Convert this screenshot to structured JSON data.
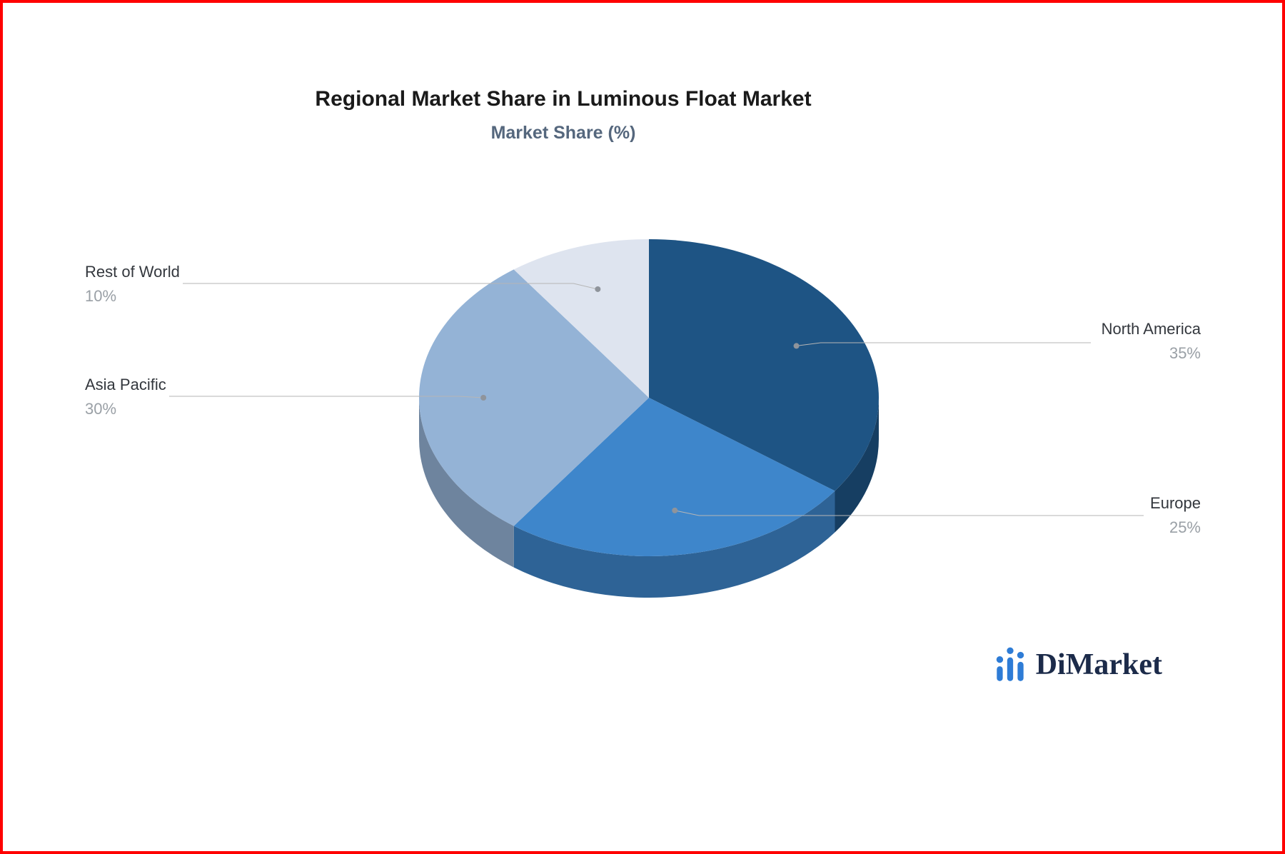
{
  "page": {
    "background": "#ffffff",
    "border_color": "#ff0000"
  },
  "chart_data": {
    "type": "pie",
    "style": "3d",
    "title": "Regional Market Share in Luminous Float Market",
    "subtitle": "Market Share (%)",
    "unit": "%",
    "direction": "clockwise",
    "start_angle_deg": 0,
    "legend_position": "callouts",
    "slices": [
      {
        "label": "North America",
        "value": 35,
        "pct_label": "35%",
        "color": "#1E5484",
        "side": "right"
      },
      {
        "label": "Europe",
        "value": 25,
        "pct_label": "25%",
        "color": "#3E86CB",
        "side": "right"
      },
      {
        "label": "Asia Pacific",
        "value": 30,
        "pct_label": "30%",
        "color": "#94B3D6",
        "side": "left"
      },
      {
        "label": "Rest of World",
        "value": 10,
        "pct_label": "10%",
        "color": "#DEE4EF",
        "side": "left"
      }
    ]
  },
  "branding": {
    "logo_text": "DiMarket",
    "logo_icon": "bar-chart-icon",
    "text_color": "#1c2b4a",
    "icon_color": "#2E7CD6"
  }
}
